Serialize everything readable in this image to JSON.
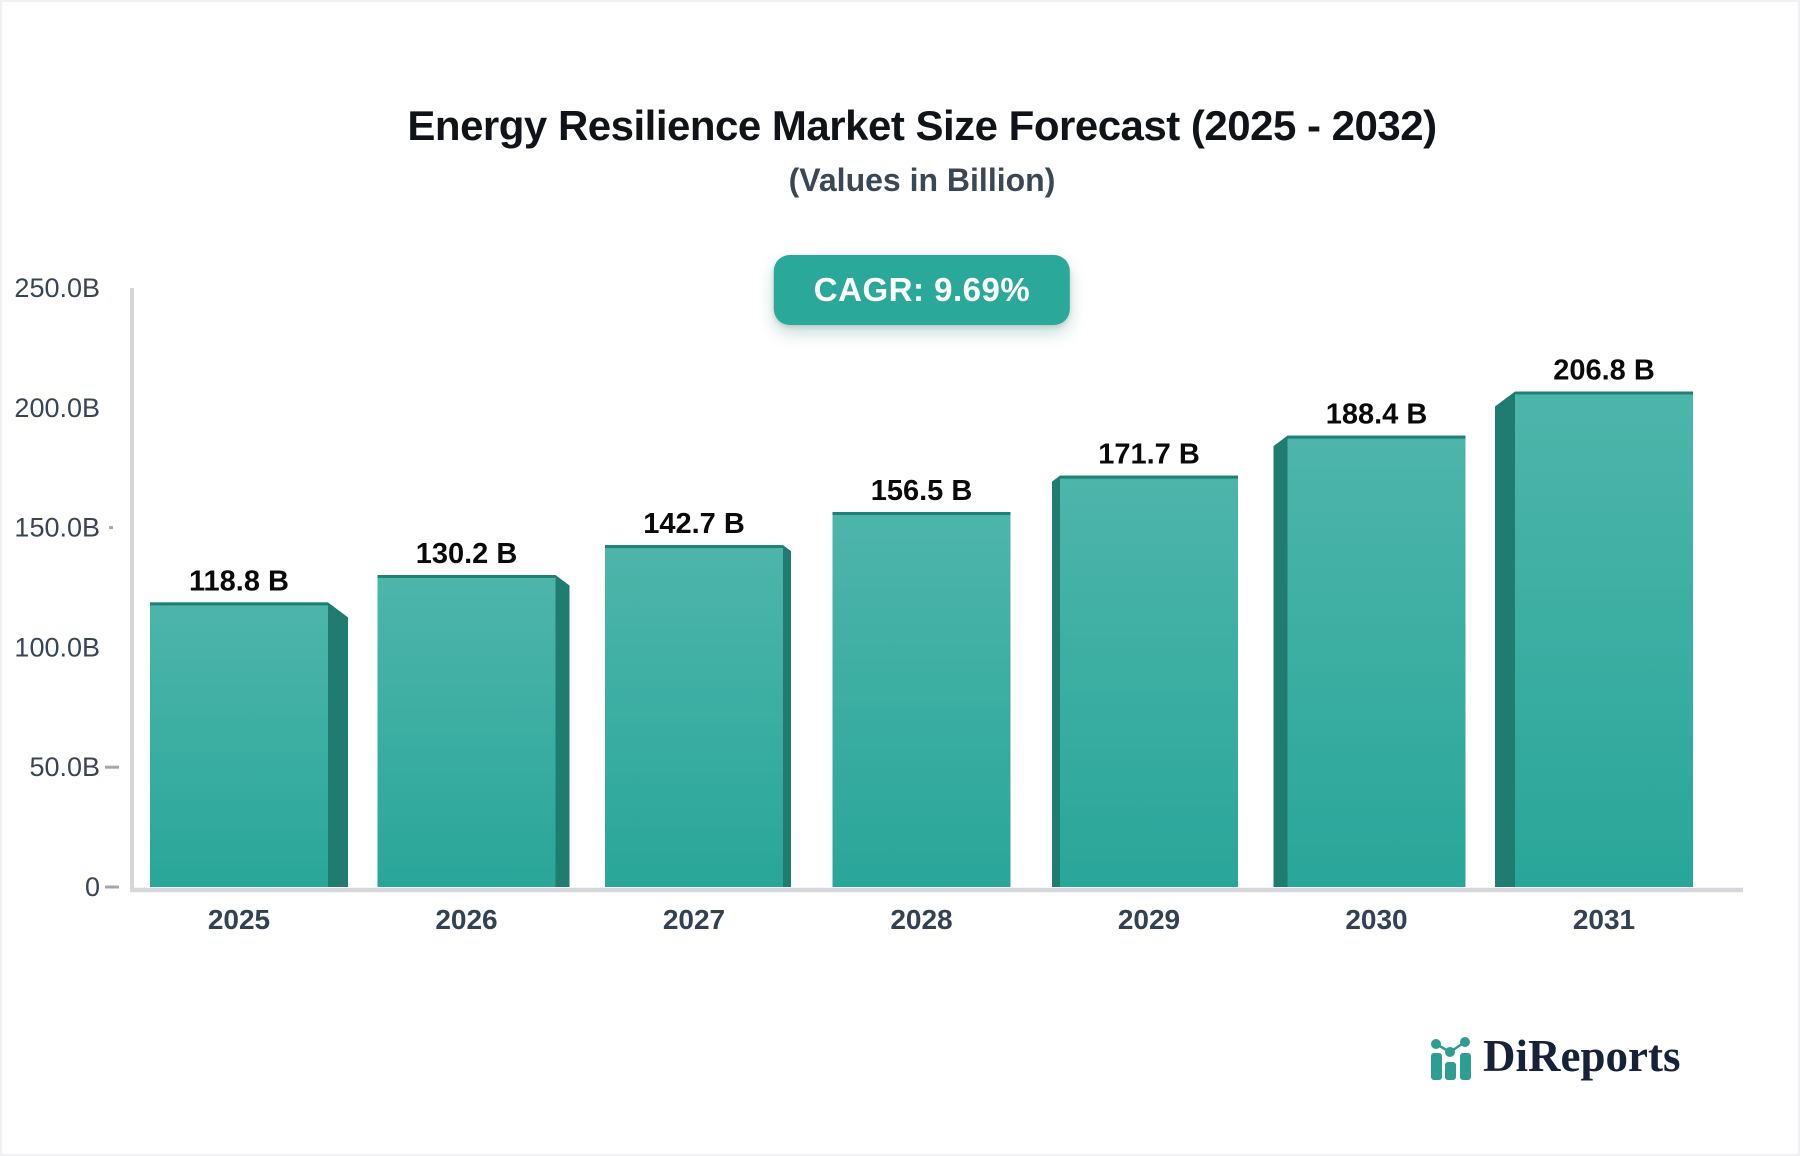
{
  "header": {
    "title": "Energy Resilience Market Size Forecast (2025 - 2032)",
    "subtitle": "(Values in Billion)",
    "cagr_badge": "CAGR: 9.69%"
  },
  "logo": {
    "text": "DiReports",
    "icon": "mini-bar-chart-icon"
  },
  "chart_data": {
    "type": "bar",
    "title": "Energy Resilience Market Size Forecast (2025 - 2032)",
    "subtitle": "(Values in Billion)",
    "categories": [
      "2025",
      "2026",
      "2027",
      "2028",
      "2029",
      "2030",
      "2031"
    ],
    "values": [
      118.8,
      130.2,
      142.7,
      156.5,
      171.7,
      188.4,
      206.8
    ],
    "bar_labels": [
      "118.8 B",
      "130.2 B",
      "142.7 B",
      "156.5 B",
      "171.7 B",
      "188.4 B",
      "206.8 B"
    ],
    "xlabel": "",
    "ylabel": "",
    "ylim": [
      0,
      250
    ],
    "grid": false,
    "legend": false,
    "style": "pseudo-3d-columns",
    "yticks": [
      {
        "value": 0,
        "label": "0",
        "tick": "dash"
      },
      {
        "value": 50,
        "label": "50.0B",
        "tick": "dash"
      },
      {
        "value": 100,
        "label": "100.0B",
        "tick": "none"
      },
      {
        "value": 150,
        "label": "150.0B",
        "tick": "dot"
      },
      {
        "value": 200,
        "label": "200.0B",
        "tick": "none"
      },
      {
        "value": 250,
        "label": "250.0B",
        "tick": "none"
      }
    ],
    "colors": {
      "bar_face_top": "#4EB5AB",
      "bar_face_bottom": "#29A699",
      "bar_side": "#207C70",
      "bar_top_edge": "#1D8176",
      "axis_line": "#D5D7DC",
      "tick": "#A2A8B3",
      "value_label": "#0A0A0A",
      "axis_label": "#3A4553",
      "category_label": "#344153",
      "badge_bg": "#2AA99A",
      "badge_text": "#FFFFFF",
      "logo_accent": "#2E9D92",
      "logo_text": "#16213A"
    }
  }
}
